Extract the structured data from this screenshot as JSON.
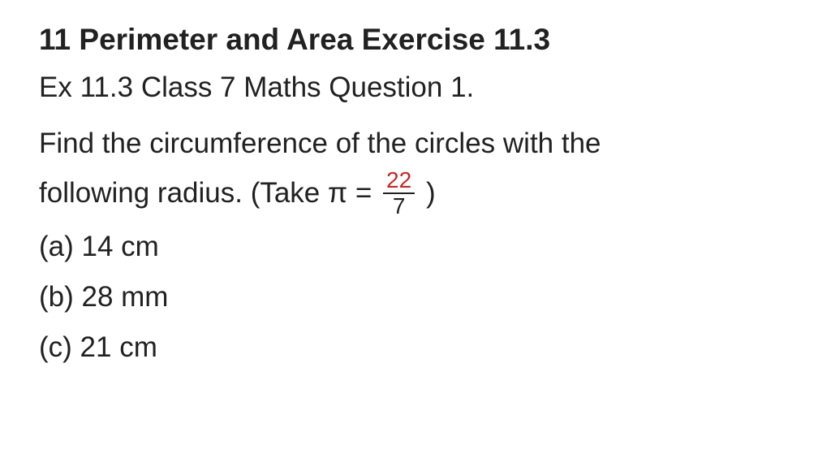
{
  "heading": "11 Perimeter and Area Exercise 11.3",
  "subheading": "Ex 11.3 Class 7 Maths Question 1.",
  "question_line1": "Find the circumference of the circles with the",
  "question_line2_prefix": "following radius. (Take π =",
  "fraction": {
    "numerator": "22",
    "denominator": "7",
    "numerator_color": "#c62828",
    "denominator_color": "#212121"
  },
  "question_line2_suffix": ")",
  "options": [
    {
      "label": "(a) 14 cm"
    },
    {
      "label": "(b) 28 mm"
    },
    {
      "label": "(c) 21 cm"
    }
  ],
  "style": {
    "background_color": "#ffffff",
    "text_color": "#212121",
    "heading_fontsize": 37,
    "body_fontsize": 35,
    "fraction_fontsize": 28,
    "font_family": "Arial, Helvetica, sans-serif"
  }
}
